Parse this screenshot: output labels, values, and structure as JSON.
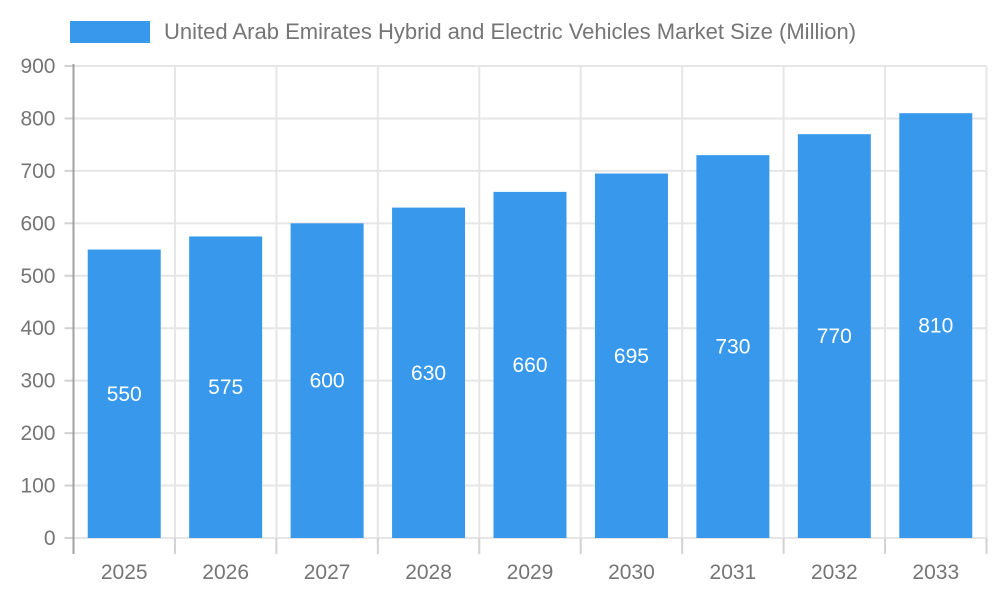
{
  "page": {
    "background_color": "#ffffff"
  },
  "legend": {
    "position": "top-left"
  },
  "chart_data": {
    "type": "bar",
    "title": "United Arab Emirates Hybrid and Electric Vehicles Market Size (Million)",
    "series_name": "United Arab Emirates Hybrid and Electric Vehicles Market Size (Million)",
    "categories": [
      "2025",
      "2026",
      "2027",
      "2028",
      "2029",
      "2030",
      "2031",
      "2032",
      "2033"
    ],
    "values": [
      550,
      575,
      600,
      630,
      660,
      695,
      730,
      770,
      810
    ],
    "value_labels_position": "inside-middle",
    "xlabel": "",
    "ylabel": "",
    "ylim": [
      0,
      900
    ],
    "ytick_interval": 100,
    "ytick_labels": [
      "0",
      "100",
      "200",
      "300",
      "400",
      "500",
      "600",
      "700",
      "800",
      "900"
    ],
    "grid": "horizontal-and-vertical",
    "legend_position": "top-left",
    "colors": {
      "bar": "#3899EC",
      "value_label": "#ffffff",
      "axis_text": "#757575",
      "grid_line": "#e6e6e6",
      "tick_line": "#d2d2d2",
      "axis_line": "#a0a0a0",
      "title_text": "#757575"
    }
  }
}
